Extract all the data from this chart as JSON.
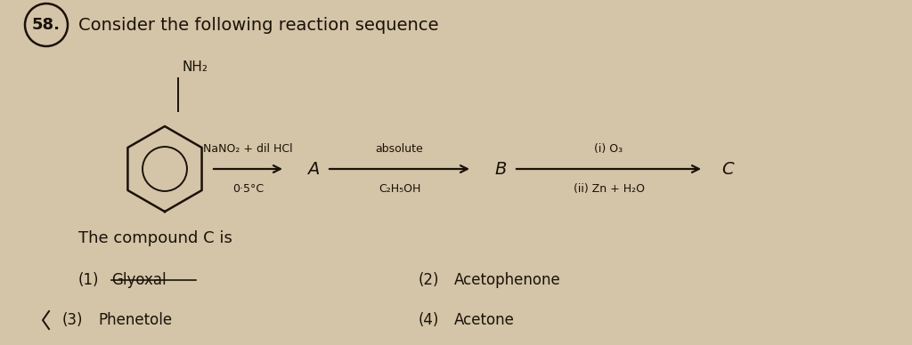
{
  "background_color": "#d4c4a8",
  "question_number": "58.",
  "question_text": "Consider the following reaction sequence",
  "nh2_label": "NH₂",
  "reagent1_top": "NaNO₂ + dil HCl",
  "reagent1_bottom": "0·5°C",
  "label_A": "A",
  "reagent2_top": "absolute",
  "reagent2_bottom": "C₂H₅OH",
  "label_B": "B",
  "reagent3_top": "(i) O₃",
  "reagent3_bottom": "(ii) Zn + H₂O",
  "label_C": "C",
  "compound_text": "The compound C is",
  "option1_num": "(1)",
  "option1_txt": "Glyoxal",
  "option2_num": "(2)",
  "option2_txt": "Acetophenone",
  "option3_num": "(3)",
  "option3_txt": "Phenetole",
  "option4_num": "(4)",
  "option4_txt": "Acetone",
  "text_color": "#1a1208",
  "arrow_color": "#1a1208",
  "ring_color": "#1a1208"
}
